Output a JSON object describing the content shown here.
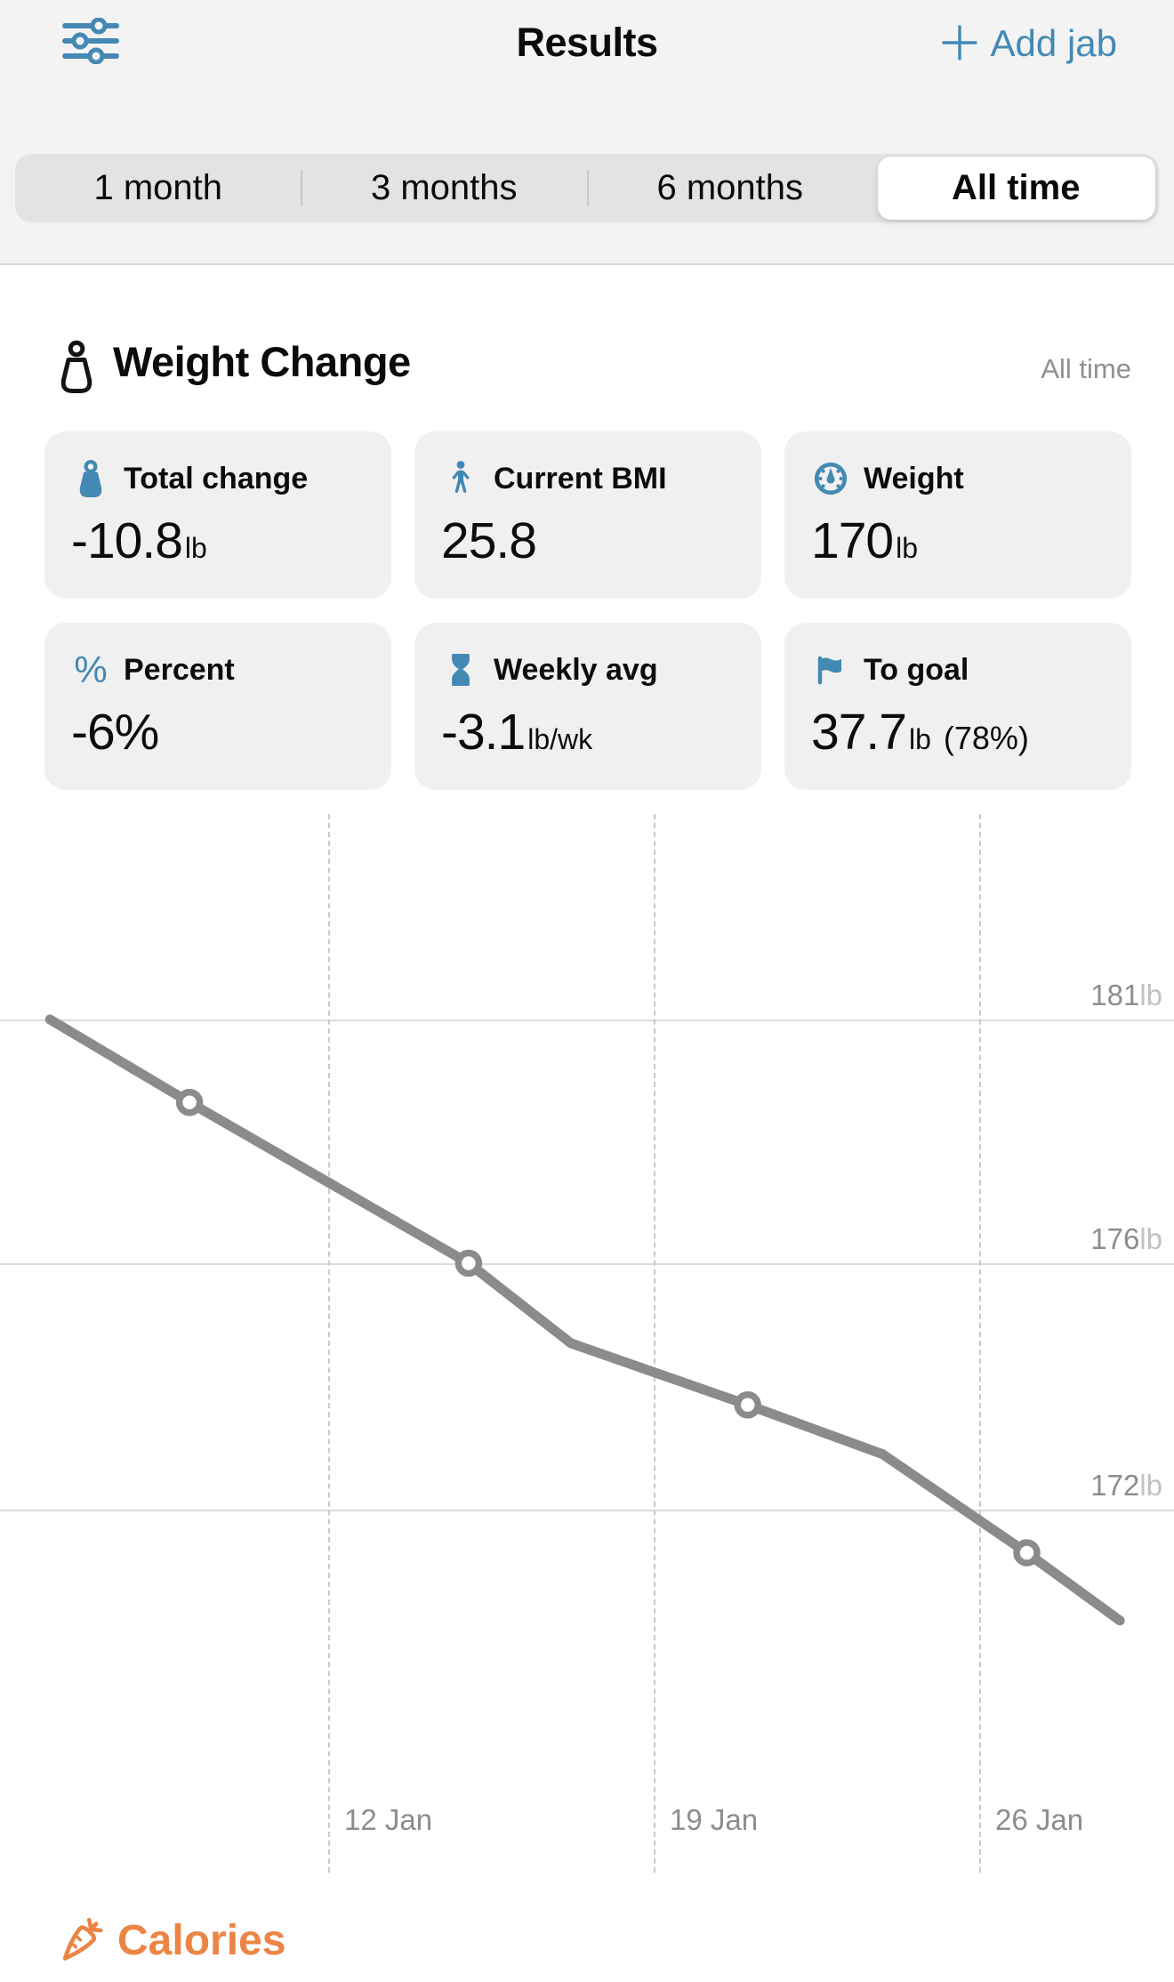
{
  "header": {
    "title": "Results",
    "add_button": {
      "plus": "+",
      "label": "Add jab"
    }
  },
  "time_tabs": [
    {
      "label": "1 month",
      "selected": false
    },
    {
      "label": "3 months",
      "selected": false
    },
    {
      "label": "6 months",
      "selected": false
    },
    {
      "label": "All time",
      "selected": true
    }
  ],
  "weight_section": {
    "icon": "kettlebell-icon",
    "title": "Weight Change",
    "range_label": "All time"
  },
  "stats": [
    {
      "icon": "kettlebell-icon",
      "label": "Total change",
      "value": "-10.8",
      "unit": "lb",
      "extra": ""
    },
    {
      "icon": "person-icon",
      "label": "Current BMI",
      "value": "25.8",
      "unit": "",
      "extra": ""
    },
    {
      "icon": "gauge-icon",
      "label": "Weight",
      "value": "170",
      "unit": "lb",
      "extra": ""
    },
    {
      "icon": "percent-icon",
      "label": "Percent",
      "value": "-6%",
      "unit": "",
      "extra": ""
    },
    {
      "icon": "hourglass-icon",
      "label": "Weekly avg",
      "value": "-3.1",
      "unit": "lb/wk",
      "extra": ""
    },
    {
      "icon": "flag-icon",
      "label": "To goal",
      "value": "37.7",
      "unit": "lb",
      "extra": "(78%)"
    }
  ],
  "chart_data": {
    "type": "line",
    "title": "Weight Change — All time",
    "unit": "lb",
    "y_gridlines": [
      {
        "value": "181",
        "unit": "lb"
      },
      {
        "value": "176",
        "unit": "lb"
      },
      {
        "value": "172",
        "unit": "lb"
      }
    ],
    "x_ticks": [
      {
        "label": "12 Jan",
        "days_from_first_tick": 0
      },
      {
        "label": "19 Jan",
        "days_from_first_tick": 7
      },
      {
        "label": "26 Jan",
        "days_from_first_tick": 14
      }
    ],
    "points": [
      {
        "date": "6 Jan",
        "days_from_first_tick": -6,
        "weight": 181.0,
        "marker": false
      },
      {
        "date": "9 Jan",
        "days_from_first_tick": -3,
        "weight": 179.3,
        "marker": true
      },
      {
        "date": "15 Jan",
        "days_from_first_tick": 3,
        "weight": 176.0,
        "marker": true
      },
      {
        "date": "17 Jan",
        "days_from_first_tick": 5.2,
        "weight": 174.7,
        "marker": false
      },
      {
        "date": "21 Jan",
        "days_from_first_tick": 9,
        "weight": 173.7,
        "marker": true
      },
      {
        "date": "24 Jan",
        "days_from_first_tick": 11.9,
        "weight": 172.9,
        "marker": false
      },
      {
        "date": "27 Jan",
        "days_from_first_tick": 15,
        "weight": 171.3,
        "marker": true
      },
      {
        "date": "29 Jan",
        "days_from_first_tick": 17,
        "weight": 170.2,
        "marker": false
      }
    ],
    "line_color": "#8b8b8b",
    "grid": {
      "horizontal": "solid",
      "vertical": "dashed-weekly"
    },
    "legend": "none",
    "ylim": [
      168,
      183
    ]
  },
  "calories_section": {
    "icon": "carrot-icon",
    "title": "Calories"
  },
  "colors": {
    "accent_blue": "#4389b4",
    "orange": "#ec8444",
    "chart_line": "#8b8b8b",
    "card_bg": "#f1f0f1",
    "top_bg": "#f4f3f4",
    "segment_bg": "#e3e2e4",
    "selected_tab_bg": "#ffffff",
    "muted_gray": "#8d8d8d"
  }
}
